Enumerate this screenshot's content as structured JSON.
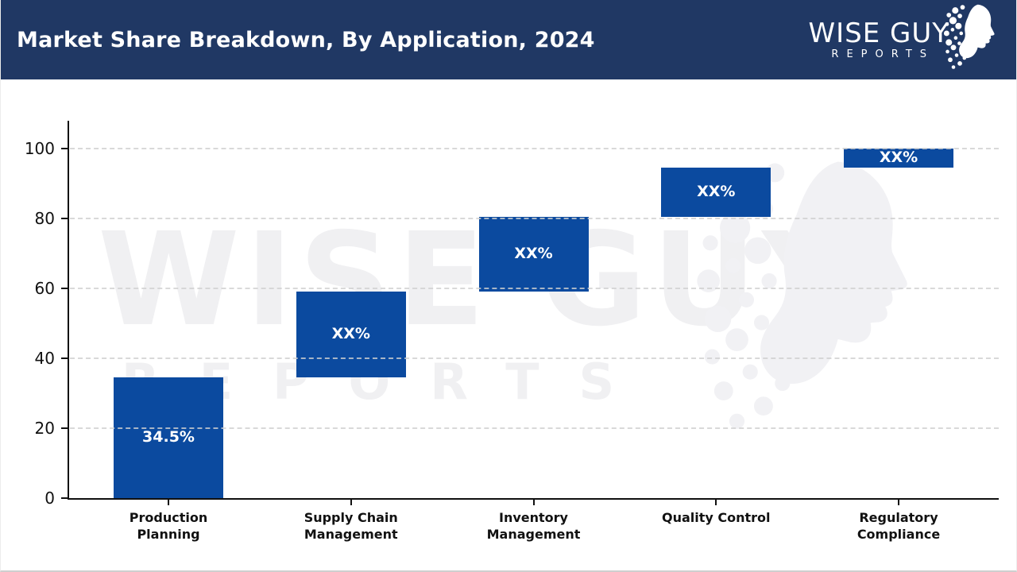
{
  "header": {
    "title": "Market Share Breakdown, By Application, 2024",
    "logo": {
      "line1": "WISE GUY",
      "line2": "REPORTS",
      "face_icon": "dotted-face-profile"
    }
  },
  "watermark": {
    "line1": "WISE GUY",
    "line2": "REPORTS",
    "face_icon": "dotted-face-profile"
  },
  "colors": {
    "header_bg": "#203864",
    "bar": "#0b4a9f",
    "bar_label": "#ffffff",
    "grid": "#d0d0d0",
    "axis": "#111111",
    "watermark": "#f0f0f2"
  },
  "chart_data": {
    "type": "bar",
    "subtype": "waterfall",
    "title": "Market Share Breakdown, By Application, 2024",
    "categories": [
      "Production\nPlanning",
      "Supply Chain\nManagement",
      "Inventory\nManagement",
      "Quality Control",
      "Regulatory\nCompliance"
    ],
    "segments": [
      {
        "category": "Production Planning",
        "start": 0,
        "end": 34.5,
        "label": "34.5%"
      },
      {
        "category": "Supply Chain Management",
        "start": 34.5,
        "end": 59,
        "label": "XX%"
      },
      {
        "category": "Inventory Management",
        "start": 59,
        "end": 80.5,
        "label": "XX%"
      },
      {
        "category": "Quality Control",
        "start": 80.5,
        "end": 94.5,
        "label": "XX%"
      },
      {
        "category": "Regulatory Compliance",
        "start": 94.5,
        "end": 100,
        "label": "XX%"
      }
    ],
    "xlabel": "",
    "ylabel": "",
    "yticks": [
      0,
      20,
      40,
      60,
      80,
      100
    ],
    "ylim": [
      0,
      107
    ],
    "grid": "horizontal-dashed",
    "legend": "none",
    "bar_color": "#0b4a9f",
    "bar_label_color": "#ffffff"
  }
}
